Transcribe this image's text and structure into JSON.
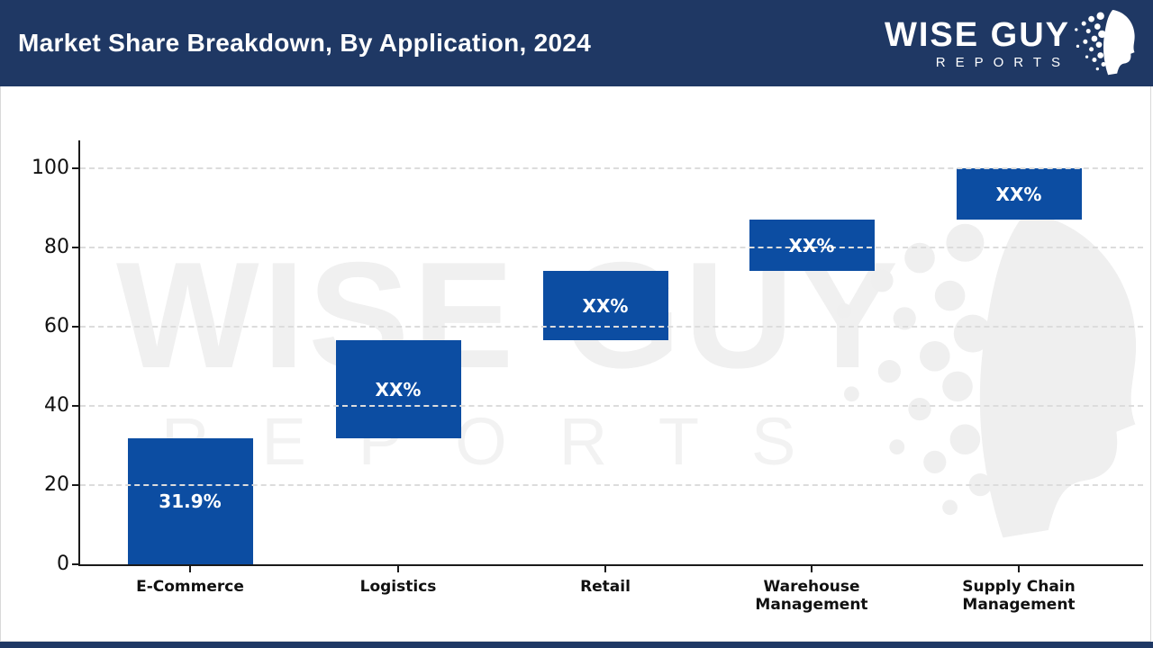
{
  "header": {
    "title": "Market Share Breakdown, By Application, 2024",
    "bg_color": "#1F3864",
    "logo": {
      "line1": "WISE GUY",
      "line2": "REPORTS"
    }
  },
  "watermark": {
    "line1": "WISE GUY",
    "line2": "REPORTS"
  },
  "chart_data": {
    "type": "bar",
    "subtype": "floating-segment-waterfall",
    "title": "Market Share Breakdown, By Application, 2024",
    "categories": [
      "E-Commerce",
      "Logistics",
      "Retail",
      "Warehouse\nManagement",
      "Supply Chain\nManagement"
    ],
    "segments": [
      {
        "category": "E-Commerce",
        "start": 0,
        "end": 31.9,
        "label": "31.9%"
      },
      {
        "category": "Logistics",
        "start": 31.9,
        "end": 56.5,
        "label": "XX%"
      },
      {
        "category": "Retail",
        "start": 56.5,
        "end": 74,
        "label": "XX%"
      },
      {
        "category": "Warehouse Management",
        "start": 74,
        "end": 87,
        "label": "XX%"
      },
      {
        "category": "Supply Chain Management",
        "start": 87,
        "end": 100,
        "label": "XX%"
      }
    ],
    "yticks": [
      0,
      20,
      40,
      60,
      80,
      100
    ],
    "ylim": [
      0,
      107
    ],
    "xlabel": "",
    "ylabel": "",
    "grid": "dashed-horizontal",
    "legend": "none",
    "bar_color": "#0C4DA2",
    "bar_label_color": "#FFFFFF",
    "axis_color": "#1A1A1A"
  }
}
